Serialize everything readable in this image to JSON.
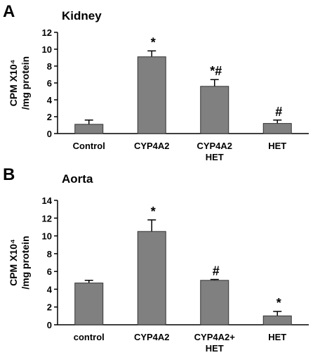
{
  "chart_data": [
    {
      "type": "bar",
      "panel": "A",
      "title": "Kidney",
      "ylabel": [
        "CPM X10⁴",
        "/mg protein"
      ],
      "categories": [
        "Control",
        "CYP4A2",
        "CYP4A2\nHET",
        "HET"
      ],
      "values": [
        1.1,
        9.1,
        5.6,
        1.2
      ],
      "errors": [
        0.5,
        0.7,
        0.8,
        0.4
      ],
      "annotations": [
        null,
        "*",
        "*#",
        "#"
      ],
      "color": "#808080",
      "ylim": [
        0,
        12
      ],
      "yticks": [
        0,
        2,
        4,
        6,
        8,
        10,
        12
      ]
    },
    {
      "type": "bar",
      "panel": "B",
      "title": "Aorta",
      "ylabel": [
        "CPM X10⁴",
        "/mg protein"
      ],
      "categories": [
        "control",
        "CYP4A2",
        "CYP4A2+\nHET",
        "HET"
      ],
      "values": [
        4.7,
        10.5,
        5.0,
        1.0
      ],
      "errors": [
        0.3,
        1.3,
        0.1,
        0.5
      ],
      "annotations": [
        null,
        "*",
        "#",
        "*"
      ],
      "color": "#808080",
      "ylim": [
        0,
        14
      ],
      "yticks": [
        0,
        2,
        4,
        6,
        8,
        10,
        12,
        14
      ]
    }
  ]
}
